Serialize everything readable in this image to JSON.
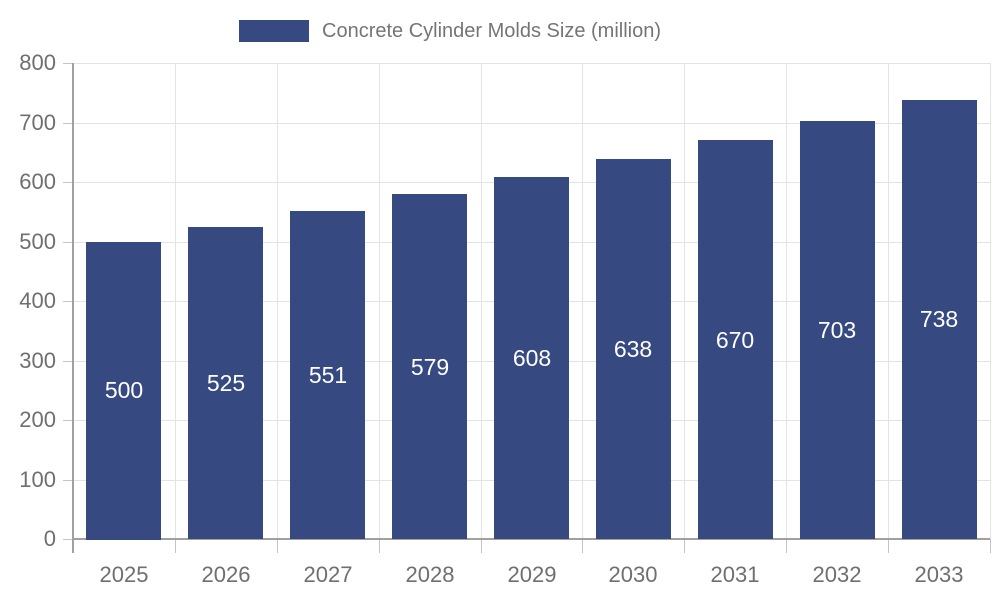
{
  "legend": {
    "label": "Concrete Cylinder Molds Size (million)"
  },
  "colors": {
    "bar": "#364A81",
    "grid": "#e3e3e3",
    "axis": "#a0a0a0",
    "tick": "#c4c4c4",
    "tick_label": "#6f6f6f",
    "legend_text": "#757575",
    "data_label": "#ffffff",
    "background": "#ffffff"
  },
  "chart_data": {
    "type": "bar",
    "title": "Concrete Cylinder Molds Size (million)",
    "categories": [
      "2025",
      "2026",
      "2027",
      "2028",
      "2029",
      "2030",
      "2031",
      "2032",
      "2033"
    ],
    "values": [
      500,
      525,
      551,
      579,
      608,
      638,
      670,
      703,
      738
    ],
    "xlabel": "",
    "ylabel": "",
    "ylim": [
      0,
      800
    ],
    "yticks": [
      0,
      100,
      200,
      300,
      400,
      500,
      600,
      700,
      800
    ],
    "grid": true,
    "legend_entries": [
      "Concrete Cylinder Molds Size (million)"
    ],
    "legend_position": "top",
    "bar_labels_inside": true
  }
}
